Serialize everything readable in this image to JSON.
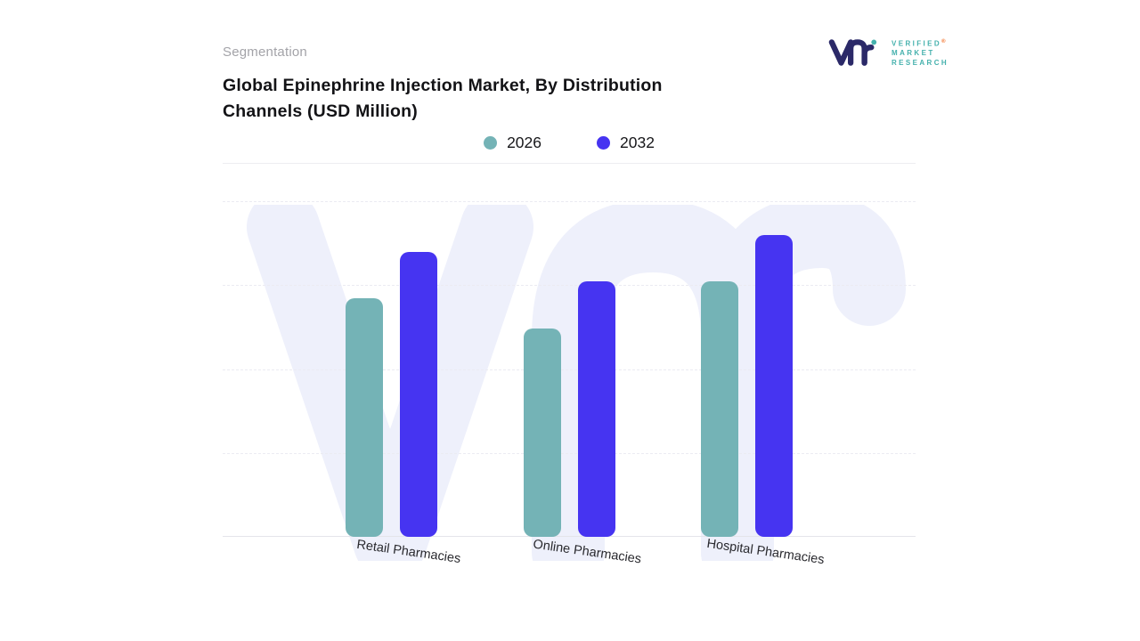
{
  "header": {
    "eyebrow": "Segmentation",
    "title": "Global Epinephrine Injection Market, By Distribution Channels (USD Million)"
  },
  "logo": {
    "line1": "VERIFIED",
    "line2": "MARKET",
    "line3": "RESEARCH",
    "registered": "®",
    "monogram_color": "#2b2968",
    "text_color": "#45b1ad",
    "accent_color": "#f26b21"
  },
  "legend": [
    {
      "label": "2026",
      "color": "#74b3b6"
    },
    {
      "label": "2032",
      "color": "#4634f1"
    }
  ],
  "chart_data": {
    "type": "bar",
    "title": "Global Epinephrine Injection Market, By Distribution Channels (USD Million)",
    "categories": [
      "Retail Pharmacies",
      "Online Pharmacies",
      "Hospital Pharmacies"
    ],
    "series": [
      {
        "name": "2026",
        "color": "#74b3b6",
        "values": [
          71,
          62,
          76
        ]
      },
      {
        "name": "2032",
        "color": "#4634f1",
        "values": [
          85,
          76,
          90
        ]
      }
    ],
    "ylim": [
      0,
      100
    ],
    "ylabel": "",
    "xlabel": "",
    "grid": "horizontal-dashed",
    "yaxis_labels_visible": false,
    "value_labels_visible": false,
    "legend_position": "top-center",
    "watermark": "VMR"
  }
}
